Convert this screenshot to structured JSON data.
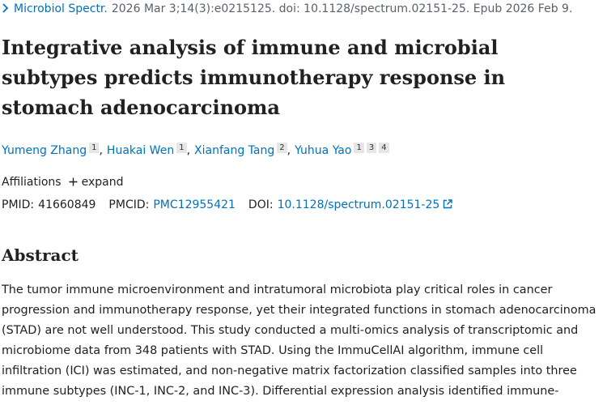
{
  "citation": {
    "journal": "Microbiol Spectr.",
    "details": "2026 Mar 3;14(3):e0215125. doi: 10.1128/spectrum.02151-25. Epub 2026 Feb 9."
  },
  "title": "Integrative analysis of immune and microbial subtypes predicts immunotherapy response in stomach adenocarcinoma",
  "authors": {
    "separator": ",",
    "list": [
      {
        "name": "Yumeng Zhang",
        "affiliations": [
          "1"
        ]
      },
      {
        "name": "Huakai Wen",
        "affiliations": [
          "1"
        ]
      },
      {
        "name": "Xianfang Tang",
        "affiliations": [
          "2"
        ]
      },
      {
        "name": "Yuhua Yao",
        "affiliations": [
          "1",
          "3",
          "4"
        ]
      }
    ]
  },
  "affiliations": {
    "label": "Affiliations",
    "toggle": "expand"
  },
  "identifiers": {
    "pmid_label": "PMID:",
    "pmid": "41660849",
    "pmcid_label": "PMCID:",
    "pmcid": "PMC12955421",
    "doi_label": "DOI:",
    "doi": "10.1128/spectrum.02151-25"
  },
  "abstract": {
    "heading": "Abstract",
    "lines": [
      "The tumor immune microenvironment and intratumoral microbiota play critical roles in cancer",
      "progression and immunotherapy response, yet their integrated functions in stomach adenocarcinoma",
      "(STAD) are not well understood. This study conducted a multi-omics analysis of transcriptomic and",
      "microbiome data from 348 patients with STAD. Using the ImmuCellAI algorithm, immune cell",
      "infiltration (ICI) was estimated, and non-negative matrix factorization classified samples into three",
      "immune subtypes (INC-1, INC-2, and INC-3). Differential expression analysis identified immune-"
    ]
  }
}
